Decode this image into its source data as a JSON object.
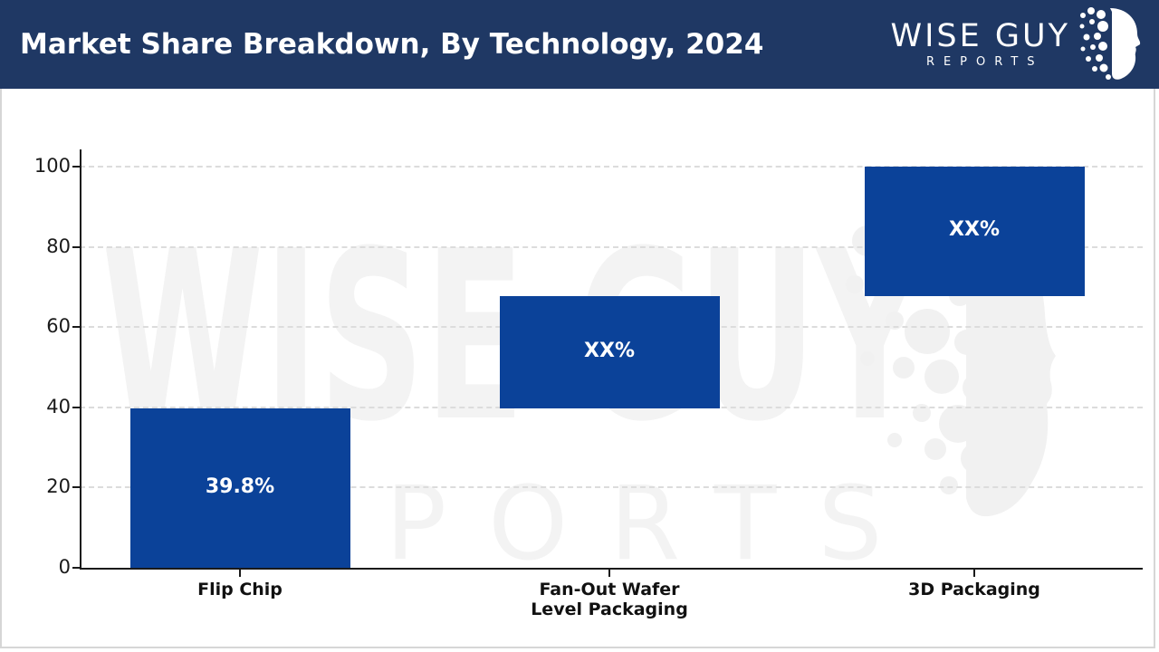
{
  "header": {
    "title": "Market Share Breakdown, By Technology, 2024",
    "logo": {
      "line1": "WISE GUY",
      "line2": "REPORTS"
    }
  },
  "watermark": {
    "line1": "WISE GUY",
    "line2": "REPORTS"
  },
  "chart_data": {
    "type": "bar",
    "subtype": "floating-stacked-waterfall",
    "title": "Market Share Breakdown, By Technology, 2024",
    "categories": [
      "Flip Chip",
      "Fan-Out Wafer\nLevel Packaging",
      "3D Packaging"
    ],
    "segments": [
      {
        "category": "Flip Chip",
        "start": 0,
        "end": 39.8,
        "value": 39.8,
        "label": "39.8%"
      },
      {
        "category": "Fan-Out Wafer Level Packaging",
        "start": 39.8,
        "end": 67.8,
        "value": 28.0,
        "label": "XX%"
      },
      {
        "category": "3D Packaging",
        "start": 67.8,
        "end": 100,
        "value": 32.2,
        "label": "XX%"
      }
    ],
    "yticks": [
      0,
      20,
      40,
      60,
      80,
      100
    ],
    "ylim": [
      0,
      104
    ],
    "xlabel": "",
    "ylabel": "",
    "grid": "horizontal-dashed",
    "legend": "none",
    "bar_color": "#0b4299",
    "label_color": "#ffffff"
  },
  "colors": {
    "header_bg": "#1f3864",
    "bar": "#0b4299",
    "grid": "#dcdcdc",
    "axis": "#1a1a1a",
    "watermark": "#f3f3f3",
    "frame_border": "#d6d6d6"
  }
}
